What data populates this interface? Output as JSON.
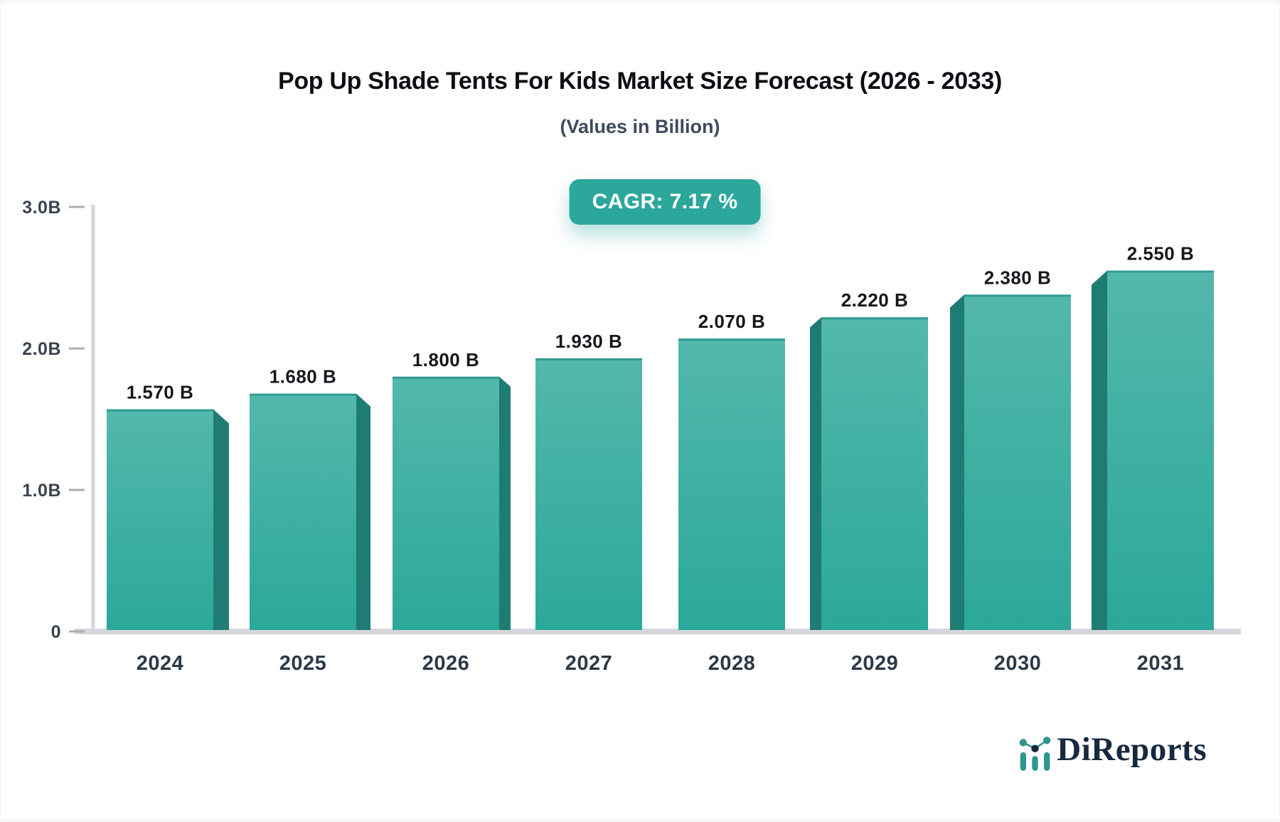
{
  "header": {
    "title": "Pop Up Shade Tents For Kids Market Size Forecast (2026 - 2033)",
    "subtitle": "(Values in Billion)"
  },
  "badge": {
    "label": "CAGR: 7.17 %"
  },
  "chart_data": {
    "type": "bar",
    "title": "Pop Up Shade Tents For Kids Market Size Forecast (2026 - 2033)",
    "subtitle": "(Values in Billion)",
    "cagr": "7.17 %",
    "unit": "Billion",
    "categories": [
      "2024",
      "2025",
      "2026",
      "2027",
      "2028",
      "2029",
      "2030",
      "2031"
    ],
    "values": [
      1.57,
      1.68,
      1.8,
      1.93,
      2.07,
      2.22,
      2.38,
      2.55
    ],
    "value_labels": [
      "1.570 B",
      "1.680 B",
      "1.800 B",
      "1.930 B",
      "2.070 B",
      "2.220 B",
      "2.380 B",
      "2.550 B"
    ],
    "xlabel": "",
    "ylabel": "",
    "ylim": [
      0,
      3.0
    ],
    "yticks": [
      {
        "value": 3.0,
        "label": "3.0B"
      },
      {
        "value": 2.0,
        "label": "2.0B"
      },
      {
        "value": 1.0,
        "label": "1.0B"
      },
      {
        "value": 0,
        "label": "0"
      }
    ],
    "grid": false,
    "legend": false,
    "colors": {
      "face_top": "#53b8ab",
      "face_bottom": "#2ba89a",
      "side": "#1e7c73",
      "top_edge": "#2f9a90",
      "axis": "#d5d6dc",
      "tick": "#a9adb5",
      "ytick_text": "#39434f",
      "xtick_text": "#2c3946",
      "value_text": "#15171c",
      "badge_bg": "#2ba79c",
      "badge_text": "#ffffff"
    }
  },
  "logo": {
    "text": "DiReports",
    "icon": "mini-bar-line-chart-icon",
    "text_color": "#16293e",
    "icon_teal": "#2f968e",
    "icon_navy": "#16293e"
  }
}
